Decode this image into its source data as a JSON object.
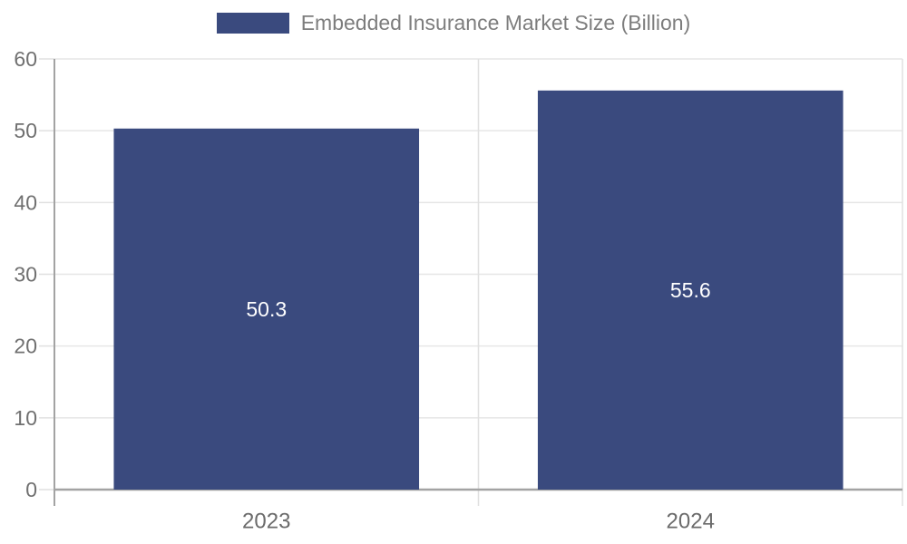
{
  "legend": {
    "label": "Embedded Insurance Market Size (Billion)"
  },
  "chart_data": {
    "type": "bar",
    "title": "",
    "series_name": "Embedded Insurance Market Size (Billion)",
    "categories": [
      "2023",
      "2024"
    ],
    "values": [
      50.3,
      55.6
    ],
    "value_labels": [
      "50.3",
      "55.6"
    ],
    "xlabel": "",
    "ylabel": "",
    "ylim": [
      0,
      60
    ],
    "yticks": [
      0,
      10,
      20,
      30,
      40,
      50,
      60
    ],
    "grid": true,
    "legend_position": "top-center",
    "colors": {
      "bar_fill": "#3A4A7E",
      "value_label_text": "#ffffff",
      "gridline": "#e6e6e6",
      "tick_line": "#e0e0e0",
      "axis_line": "#a3a3a3",
      "y_tick_text": "#707070",
      "x_tick_text": "#6b6b6b",
      "legend_text": "#7d7d7d",
      "background": "#ffffff"
    }
  }
}
